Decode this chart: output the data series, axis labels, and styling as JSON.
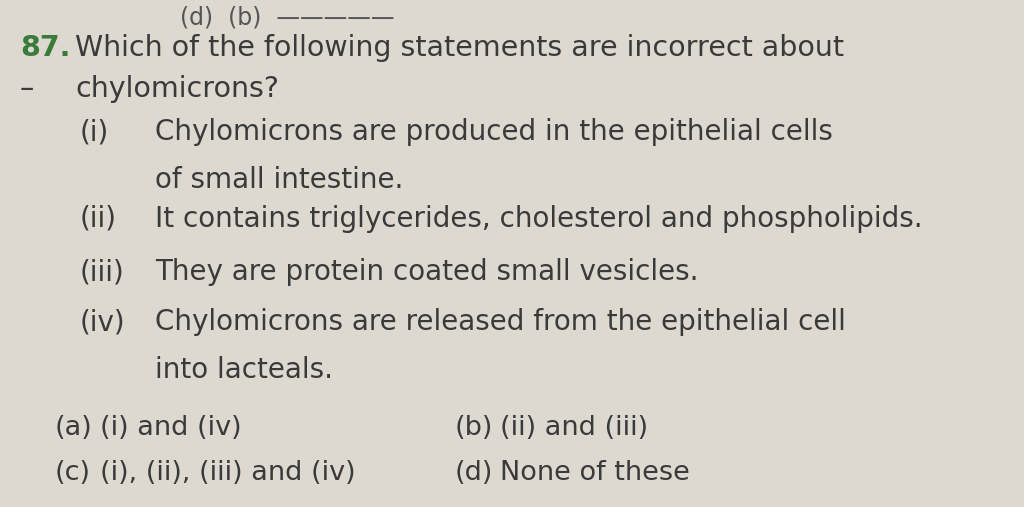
{
  "background_color": "#ddd9d0",
  "question_number": "87.",
  "question_line1": "Which of the following statements are incorrect about",
  "question_line2": "chylomicrons?",
  "dash": "–",
  "items": [
    {
      "label": "(i)",
      "line1": "Chylomicrons are produced in the epithelial cells",
      "line2": "of small intestine."
    },
    {
      "label": "(ii)",
      "line1": "It contains triglycerides, cholesterol and phospholipids.",
      "line2": null
    },
    {
      "label": "(iii)",
      "line1": "They are protein coated small vesicles.",
      "line2": null
    },
    {
      "label": "(iv)",
      "line1": "Chylomicrons are released from the epithelial cell",
      "line2": "into lacteals."
    }
  ],
  "options": [
    {
      "label": "(a)",
      "text": "(i) and (iv)"
    },
    {
      "label": "(b)",
      "text": "(ii) and (iii)"
    },
    {
      "label": "(c)",
      "text": "(i), (ii), (iii) and (iv)"
    },
    {
      "label": "(d)",
      "text": "None of these"
    }
  ],
  "text_color": "#3a3a3a",
  "number_color": "#3a7a3a",
  "font_size_question": 20.5,
  "font_size_items": 20.0,
  "font_size_options": 19.5,
  "top_partial_text": "(d)  (b)  —————",
  "top_partial_color": "#555555"
}
